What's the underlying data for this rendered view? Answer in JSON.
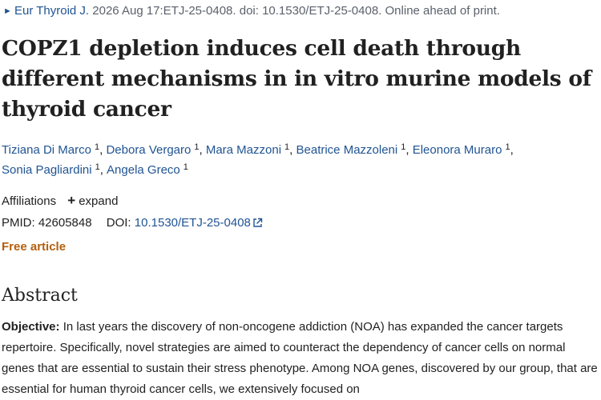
{
  "citation": {
    "journal": "Eur Thyroid J.",
    "details": " 2026 Aug 17:ETJ-25-0408. doi: 10.1530/ETJ-25-0408. Online ahead of print."
  },
  "article": {
    "title": "COPZ1 depletion induces cell death through different mechanisms in in vitro murine models of thyroid cancer"
  },
  "authors": [
    {
      "name": "Tiziana Di Marco",
      "affiliation": "1"
    },
    {
      "name": "Debora Vergaro",
      "affiliation": "1"
    },
    {
      "name": "Mara Mazzoni",
      "affiliation": "1"
    },
    {
      "name": "Beatrice Mazzoleni",
      "affiliation": "1"
    },
    {
      "name": "Eleonora Muraro",
      "affiliation": "1"
    },
    {
      "name": "Sonia Pagliardini",
      "affiliation": "1"
    },
    {
      "name": "Angela Greco",
      "affiliation": "1"
    }
  ],
  "affiliations": {
    "label": "Affiliations",
    "expand_label": "expand"
  },
  "identifiers": {
    "pmid_label": "PMID:",
    "pmid": "42605848",
    "doi_label": "DOI:",
    "doi": "10.1530/ETJ-25-0408"
  },
  "access": {
    "label": "Free article"
  },
  "abstract": {
    "heading": "Abstract",
    "objective_label": "Objective:",
    "objective_text": " In last years the discovery of non-oncogene addiction (NOA) has expanded the cancer targets repertoire. Specifically, novel strategies are aimed to counteract the dependency of cancer cells on normal genes that are essential to sustain their stress phenotype. Among NOA genes, discovered by our group, that are essential for human thyroid cancer cells, we extensively focused on"
  },
  "colors": {
    "link": "#205493",
    "text": "#212121",
    "muted": "#5b616b",
    "free_article": "#b35f0c"
  },
  "icons": {
    "journal_arrow": "triangle-right-icon",
    "expand": "plus-icon",
    "doi_external": "external-link-icon"
  }
}
